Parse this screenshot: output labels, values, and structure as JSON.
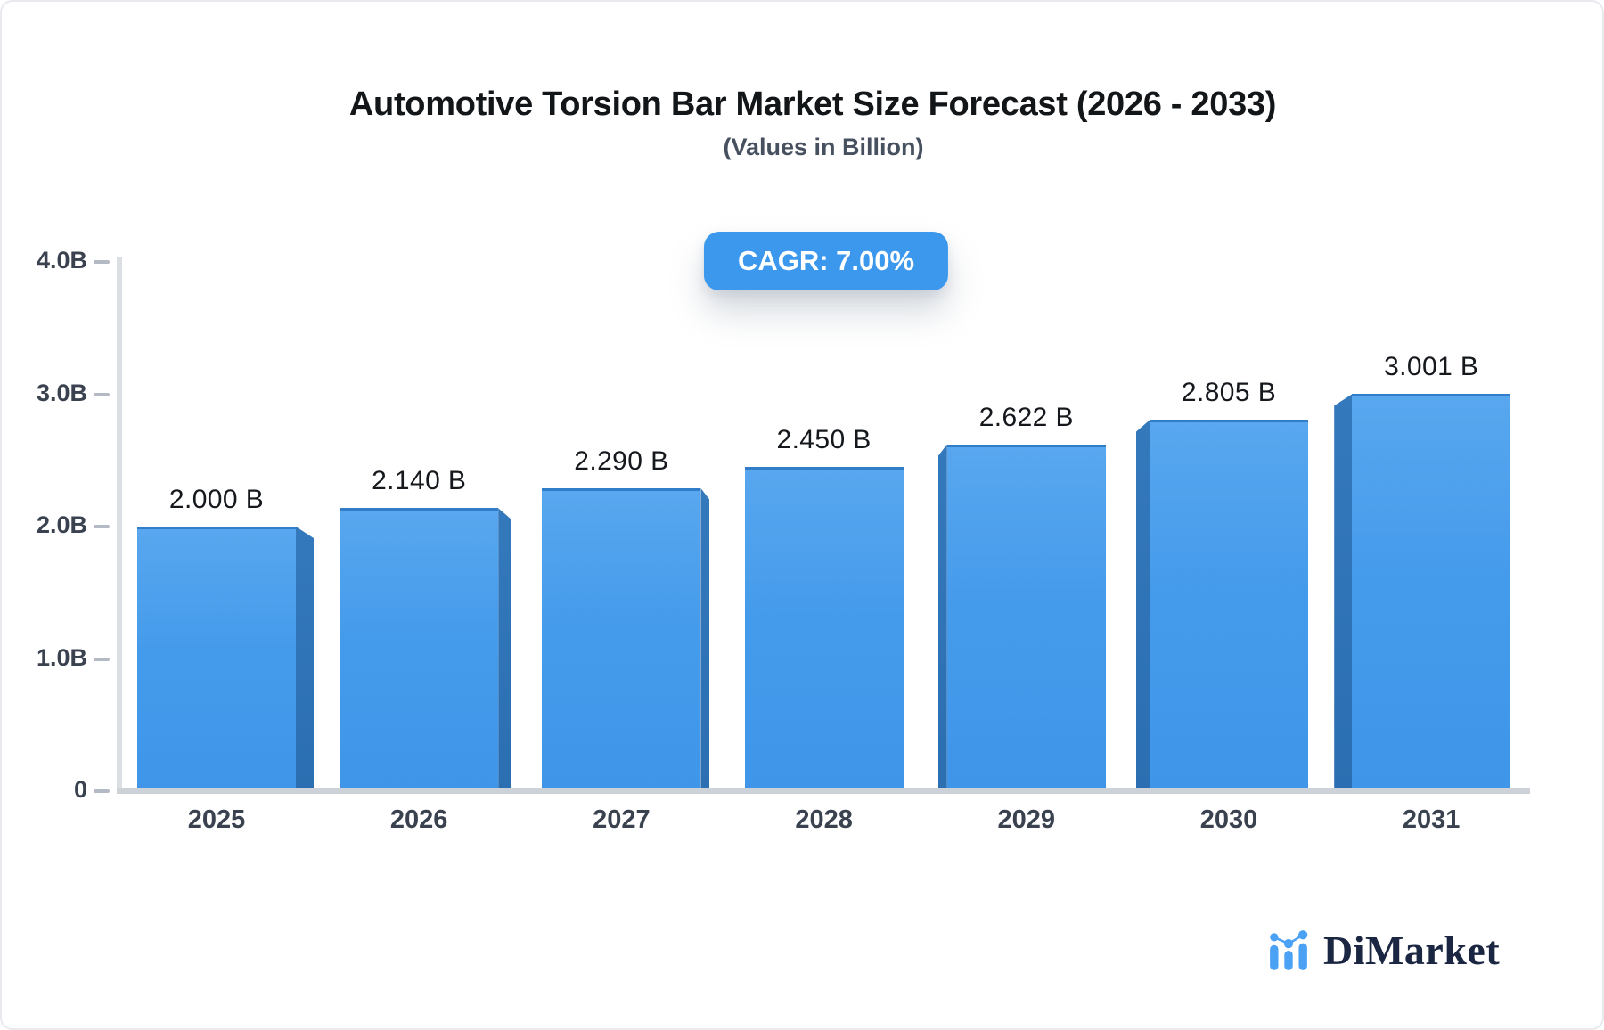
{
  "title": "Automotive Torsion Bar Market Size Forecast (2026 - 2033)",
  "subtitle": "(Values in Billion)",
  "badge": {
    "label": "CAGR: 7.00%"
  },
  "logo": {
    "text": "DiMarket",
    "icon": "mini-bar-chart-icon"
  },
  "colors": {
    "bar_face": "#459BEB",
    "bar_side": "#2E73B6",
    "badge_bg": "#3C98ED",
    "axis_line": "#D6DAE0",
    "label_dark": "#15181D",
    "label_gray": "#3A4250",
    "logo_navy": "#1B2642",
    "logo_blue": "#4BA1F4"
  },
  "chart_data": {
    "type": "bar",
    "title": "Automotive Torsion Bar Market Size Forecast (2026 - 2033)",
    "subtitle": "(Values in Billion)",
    "annotation": "CAGR: 7.00%",
    "unit": "Billion",
    "categories": [
      "2025",
      "2026",
      "2027",
      "2028",
      "2029",
      "2030",
      "2031"
    ],
    "values": [
      2.0,
      2.14,
      2.29,
      2.45,
      2.622,
      2.805,
      3.001
    ],
    "bar_labels": [
      "2.000 B",
      "2.140 B",
      "2.290 B",
      "2.450 B",
      "2.622 B",
      "2.805 B",
      "3.001 B"
    ],
    "ylim": [
      0,
      4
    ],
    "y_ticks": [
      {
        "label": "4.0B",
        "value": 4.0
      },
      {
        "label": "3.0B",
        "value": 3.0
      },
      {
        "label": "2.0B",
        "value": 2.0
      },
      {
        "label": "1.0B",
        "value": 1.0
      },
      {
        "label": "0",
        "value": 0.0
      }
    ],
    "grid": false,
    "legend": false,
    "bar_style": "3d-extruded"
  }
}
